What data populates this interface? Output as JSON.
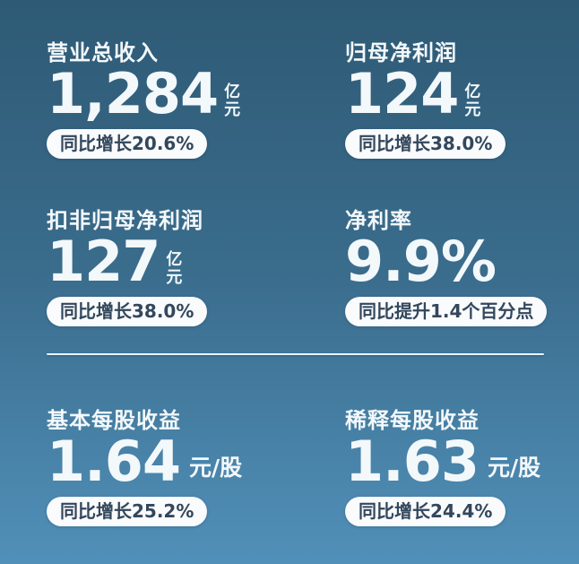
{
  "theme": {
    "bg_top": "#2E5A75",
    "bg_mid": "#3A6C8C",
    "bg_bottom": "#5190B9",
    "text_color": "#F3F8FB",
    "pill_bg": "#FAFBFD",
    "pill_text": "#33475C",
    "divider_color": "#E6F5FA"
  },
  "stats": [
    {
      "label": "营业总收入",
      "value": "1,284",
      "unit_top": "亿",
      "unit_bottom": "元",
      "unit_inline": "",
      "badge": "同比增长20.6%"
    },
    {
      "label": "归母净利润",
      "value": "124",
      "unit_top": "亿",
      "unit_bottom": "元",
      "unit_inline": "",
      "badge": "同比增长38.0%"
    },
    {
      "label": "扣非归母净利润",
      "value": "127",
      "unit_top": "亿",
      "unit_bottom": "元",
      "unit_inline": "",
      "badge": "同比增长38.0%"
    },
    {
      "label": "净利率",
      "value": "9.9%",
      "unit_top": "",
      "unit_bottom": "",
      "unit_inline": "",
      "badge": "同比提升1.4个百分点"
    },
    {
      "label": "基本每股收益",
      "value": "1.64",
      "unit_top": "",
      "unit_bottom": "",
      "unit_inline": "元/股",
      "badge": "同比增长25.2%"
    },
    {
      "label": "稀释每股收益",
      "value": "1.63",
      "unit_top": "",
      "unit_bottom": "",
      "unit_inline": "元/股",
      "badge": "同比增长24.4%"
    }
  ],
  "chart_data": {
    "type": "table",
    "metrics": [
      {
        "label": "营业总收入",
        "value": 1284,
        "unit": "亿元",
        "change": "同比增长20.6%"
      },
      {
        "label": "归母净利润",
        "value": 124,
        "unit": "亿元",
        "change": "同比增长38.0%"
      },
      {
        "label": "扣非归母净利润",
        "value": 127,
        "unit": "亿元",
        "change": "同比增长38.0%"
      },
      {
        "label": "净利率",
        "value": 9.9,
        "unit": "%",
        "change": "同比提升1.4个百分点"
      },
      {
        "label": "基本每股收益",
        "value": 1.64,
        "unit": "元/股",
        "change": "同比增长25.2%"
      },
      {
        "label": "稀释每股收益",
        "value": 1.63,
        "unit": "元/股",
        "change": "同比增长24.4%"
      }
    ]
  }
}
